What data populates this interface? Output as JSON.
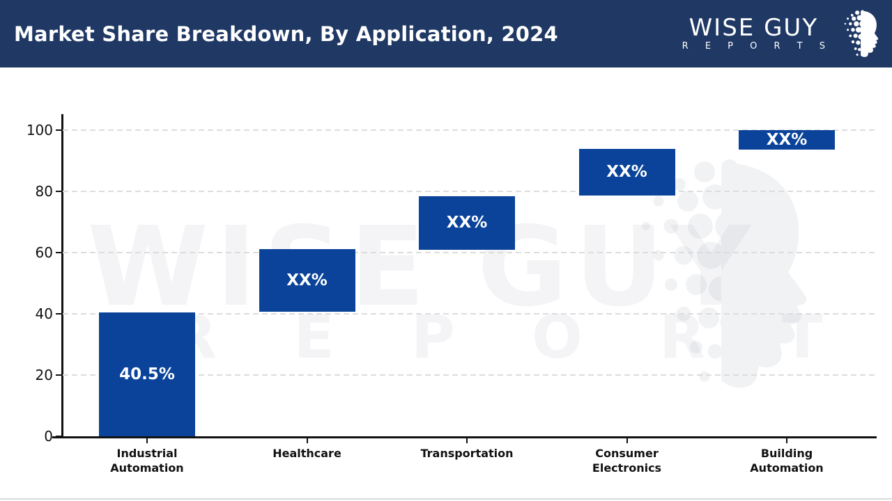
{
  "header": {
    "title": "Market Share Breakdown, By Application, 2024",
    "logo": {
      "name": "wise-guy-reports-logo",
      "line1": "WISE GUY",
      "line2": "R E P O R T S"
    }
  },
  "watermark": {
    "line1": "WISE GUY",
    "line2": "R E P O R T S"
  },
  "chart_data": {
    "type": "bar",
    "subtype": "waterfall",
    "title": "Market Share Breakdown, By Application, 2024",
    "categories": [
      "Industrial Automation",
      "Healthcare",
      "Transportation",
      "Consumer Electronics",
      "Building Automation"
    ],
    "category_lines": [
      [
        "Industrial",
        "Automation"
      ],
      [
        "Healthcare"
      ],
      [
        "Transportation"
      ],
      [
        "Consumer",
        "Electronics"
      ],
      [
        "Building",
        "Automation"
      ]
    ],
    "segments": [
      {
        "category": "Industrial Automation",
        "start": 0,
        "end": 40.5,
        "label": "40.5%"
      },
      {
        "category": "Healthcare",
        "start": 40.7,
        "end": 61,
        "label": "XX%"
      },
      {
        "category": "Transportation",
        "start": 60.8,
        "end": 78.4,
        "label": "XX%"
      },
      {
        "category": "Consumer Electronics",
        "start": 78.6,
        "end": 93.8,
        "label": "XX%"
      },
      {
        "category": "Building Automation",
        "start": 93.6,
        "end": 99.9,
        "label": "XX%"
      }
    ],
    "y_ticks": [
      0,
      20,
      40,
      60,
      80,
      100
    ],
    "ylim": [
      0,
      105
    ],
    "xlabel": "",
    "ylabel": "",
    "grid": "horizontal-dashed",
    "legend": "none",
    "bar_color": "#0a4399",
    "bar_label_color": "#ffffff"
  },
  "colors": {
    "header_bg": "#1f3864",
    "bar": "#0a4399",
    "grid": "#dcdcdc",
    "axis": "#111111",
    "page_bg": "#ffffff",
    "footer_line": "#d9d9d9"
  }
}
